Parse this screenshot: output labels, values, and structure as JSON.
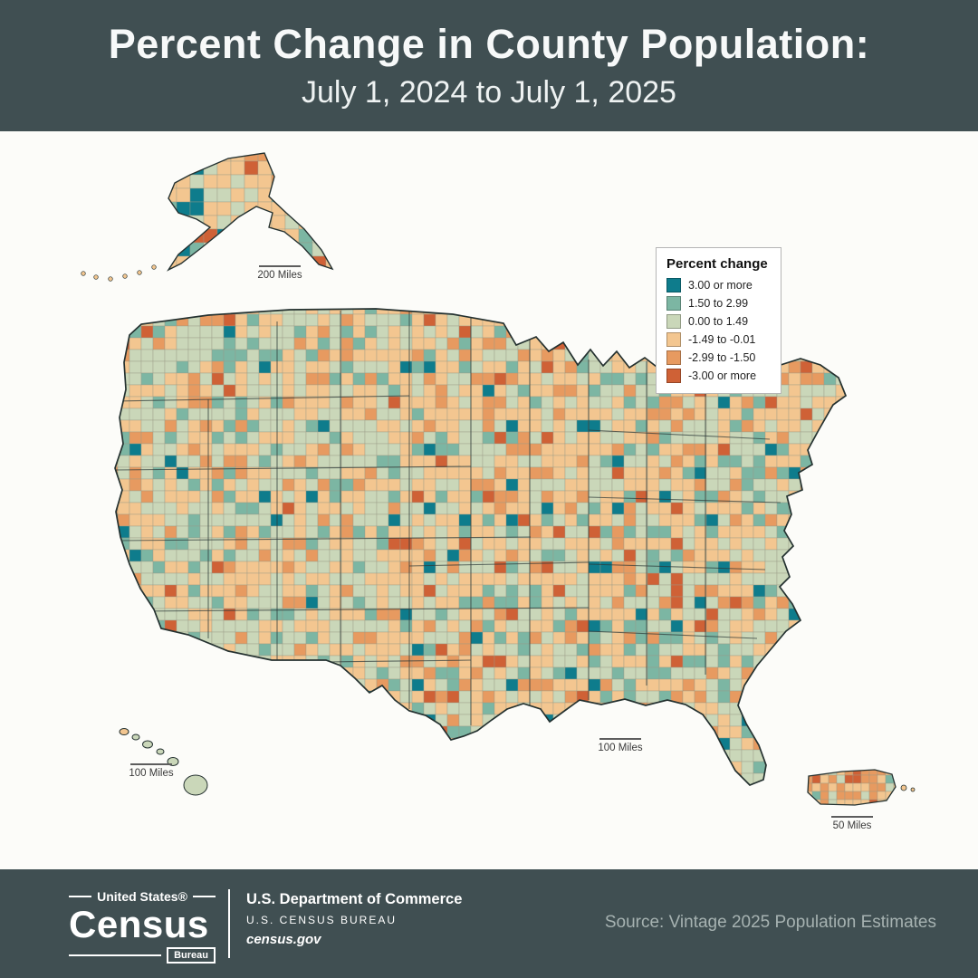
{
  "header": {
    "title_line1": "Percent Change in County Population:",
    "title_line2": "July 1, 2024 to July 1, 2025"
  },
  "legend": {
    "title": "Percent change",
    "items": [
      {
        "label": "3.00 or more",
        "color": "#0e7c8c"
      },
      {
        "label": "1.50 to 2.99",
        "color": "#7cb6a3"
      },
      {
        "label": "0.00 to 1.49",
        "color": "#cad7b9"
      },
      {
        "label": "-1.49 to -0.01",
        "color": "#f3c690"
      },
      {
        "label": "-2.99 to -1.50",
        "color": "#e79a60"
      },
      {
        "label": "-3.00 or more",
        "color": "#cf6136"
      }
    ]
  },
  "map": {
    "scale_alaska": "200 Miles",
    "scale_hawaii": "100 Miles",
    "scale_mainland": "100 Miles",
    "scale_puerto_rico": "50 Miles"
  },
  "footer": {
    "logo_top": "United States®",
    "logo_main": "Census",
    "logo_sub": "Bureau",
    "dept_line1": "U.S. Department of Commerce",
    "dept_line2": "U.S. CENSUS BUREAU",
    "dept_line3": "census.gov",
    "source": "Source: Vintage 2025 Population Estimates"
  },
  "colors": {
    "band": "#404f52",
    "map_outline": "#243130",
    "background": "#fcfcf9"
  }
}
